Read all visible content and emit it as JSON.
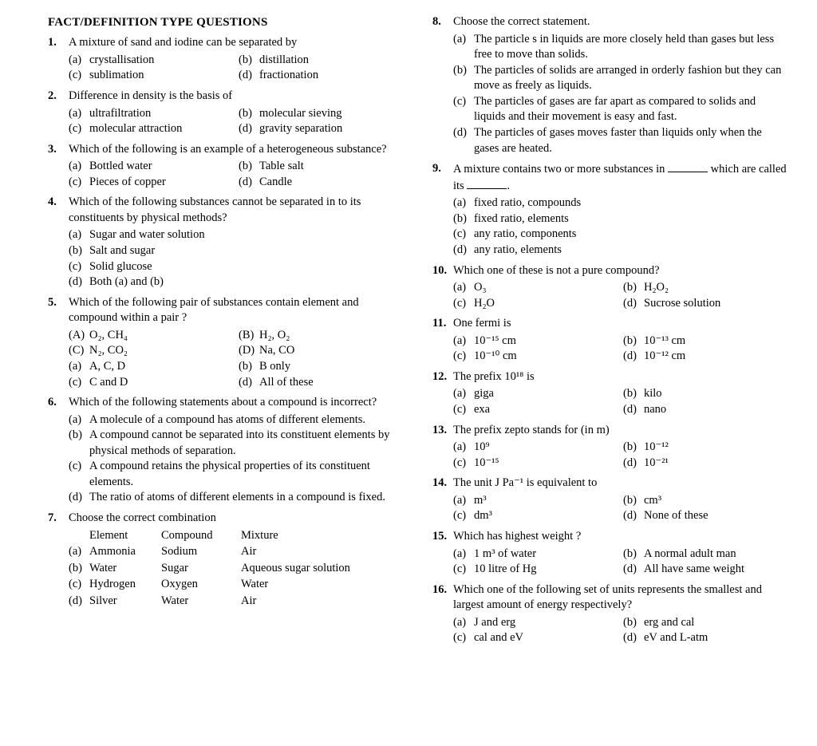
{
  "left": {
    "heading": "FACT/DEFINITION TYPE QUESTIONS",
    "q1": {
      "num": "1.",
      "stem": "A mixture of sand and iodine can be separated by",
      "a": "crystallisation",
      "b": "distillation",
      "c": "sublimation",
      "d": "fractionation"
    },
    "q2": {
      "num": "2.",
      "stem": "Difference in density is the basis of",
      "a": "ultrafiltration",
      "b": "molecular sieving",
      "c": "molecular attraction",
      "d": "gravity separation"
    },
    "q3": {
      "num": "3.",
      "stem": "Which of the following is an example of a heterogeneous substance?",
      "a": "Bottled water",
      "b": "Table salt",
      "c": "Pieces of copper",
      "d": "Candle"
    },
    "q4": {
      "num": "4.",
      "stem": "Which of the following substances cannot be separated in to its constituents by physical methods?",
      "a": "Sugar and water solution",
      "b": "Salt and sugar",
      "c": "Solid glucose",
      "d": "Both (a) and (b)"
    },
    "q5": {
      "num": "5.",
      "stem": "Which of the following pair of substances contain element and compound within a pair ?",
      "Aa": "O₂, CH₄",
      "Bb": "H₂, O₂",
      "Cc": "N₂, CO₂",
      "Dd": "Na, CO",
      "a": "A, C, D",
      "b": "B only",
      "c": "C and D",
      "d": "All of these"
    },
    "q6": {
      "num": "6.",
      "stem": "Which of the following statements about a compound is incorrect?",
      "a": "A molecule of a compound has atoms of different elements.",
      "b": "A compound cannot be separated into its constituent elements by physical methods of separation.",
      "c": "A compound retains the physical properties of its constituent elements.",
      "d": "The ratio of atoms of different elements in a compound is fixed."
    },
    "q7": {
      "num": "7.",
      "stem": "Choose the correct combination",
      "h1": "Element",
      "h2": "Compound",
      "h3": "Mixture",
      "r1": {
        "l": "(a)",
        "c1": "Ammonia",
        "c2": "Sodium",
        "c3": "Air"
      },
      "r2": {
        "l": "(b)",
        "c1": "Water",
        "c2": "Sugar",
        "c3": "Aqueous sugar solution"
      },
      "r3": {
        "l": "(c)",
        "c1": "Hydrogen",
        "c2": "Oxygen",
        "c3": "Water"
      },
      "r4": {
        "l": "(d)",
        "c1": "Silver",
        "c2": "Water",
        "c3": "Air"
      }
    }
  },
  "right": {
    "q8": {
      "num": "8.",
      "stem": "Choose the correct statement.",
      "a": "The particle s in liquids are more closely held than gases but less free to move than solids.",
      "b": "The particles of solids are arranged in orderly fashion but they can move as freely as liquids.",
      "c": "The particles of gases are far apart as compared to solids and liquids and their movement is easy and fast.",
      "d": "The particles of gases moves faster than liquids only when the gases are heated."
    },
    "q9": {
      "num": "9.",
      "stemA": "A mixture contains two or more substances in ",
      "stemB": " which are called its ",
      "stemC": ".",
      "a": "fixed ratio, compounds",
      "b": "fixed ratio, elements",
      "c": "any ratio, components",
      "d": "any ratio, elements"
    },
    "q10": {
      "num": "10.",
      "stem": "Which one of these is not a pure compound?",
      "a": "O₃",
      "b": "H₂O₂",
      "c": "H₂O",
      "d": "Sucrose solution"
    },
    "q11": {
      "num": "11.",
      "stem": "One fermi is",
      "a": "10⁻¹⁵ cm",
      "b": "10⁻¹³ cm",
      "c": "10⁻¹⁰ cm",
      "d": "10⁻¹² cm"
    },
    "q12": {
      "num": "12.",
      "stem": "The prefix 10¹⁸ is",
      "a": "giga",
      "b": "kilo",
      "c": "exa",
      "d": "nano"
    },
    "q13": {
      "num": "13.",
      "stem": "The prefix zepto stands for (in m)",
      "a": "10⁹",
      "b": "10⁻¹²",
      "c": "10⁻¹⁵",
      "d": "10⁻²¹"
    },
    "q14": {
      "num": "14.",
      "stem": "The unit J Pa⁻¹ is equivalent to",
      "a": "m³",
      "b": "cm³",
      "c": "dm³",
      "d": "None of these"
    },
    "q15": {
      "num": "15.",
      "stem": "Which has highest weight ?",
      "a": "1 m³ of water",
      "b": "A normal adult man",
      "c": "10 litre of Hg",
      "d": "All have same weight"
    },
    "q16": {
      "num": "16.",
      "stem": "Which one of the following set of units represents the smallest and largest amount of energy respectively?",
      "a": "J and erg",
      "b": "erg and cal",
      "c": "cal and eV",
      "d": "eV and L-atm"
    }
  },
  "labels": {
    "a": "(a)",
    "b": "(b)",
    "c": "(c)",
    "d": "(d)",
    "A": "(A)",
    "B": "(B)",
    "C": "(C)",
    "D": "(D)"
  }
}
